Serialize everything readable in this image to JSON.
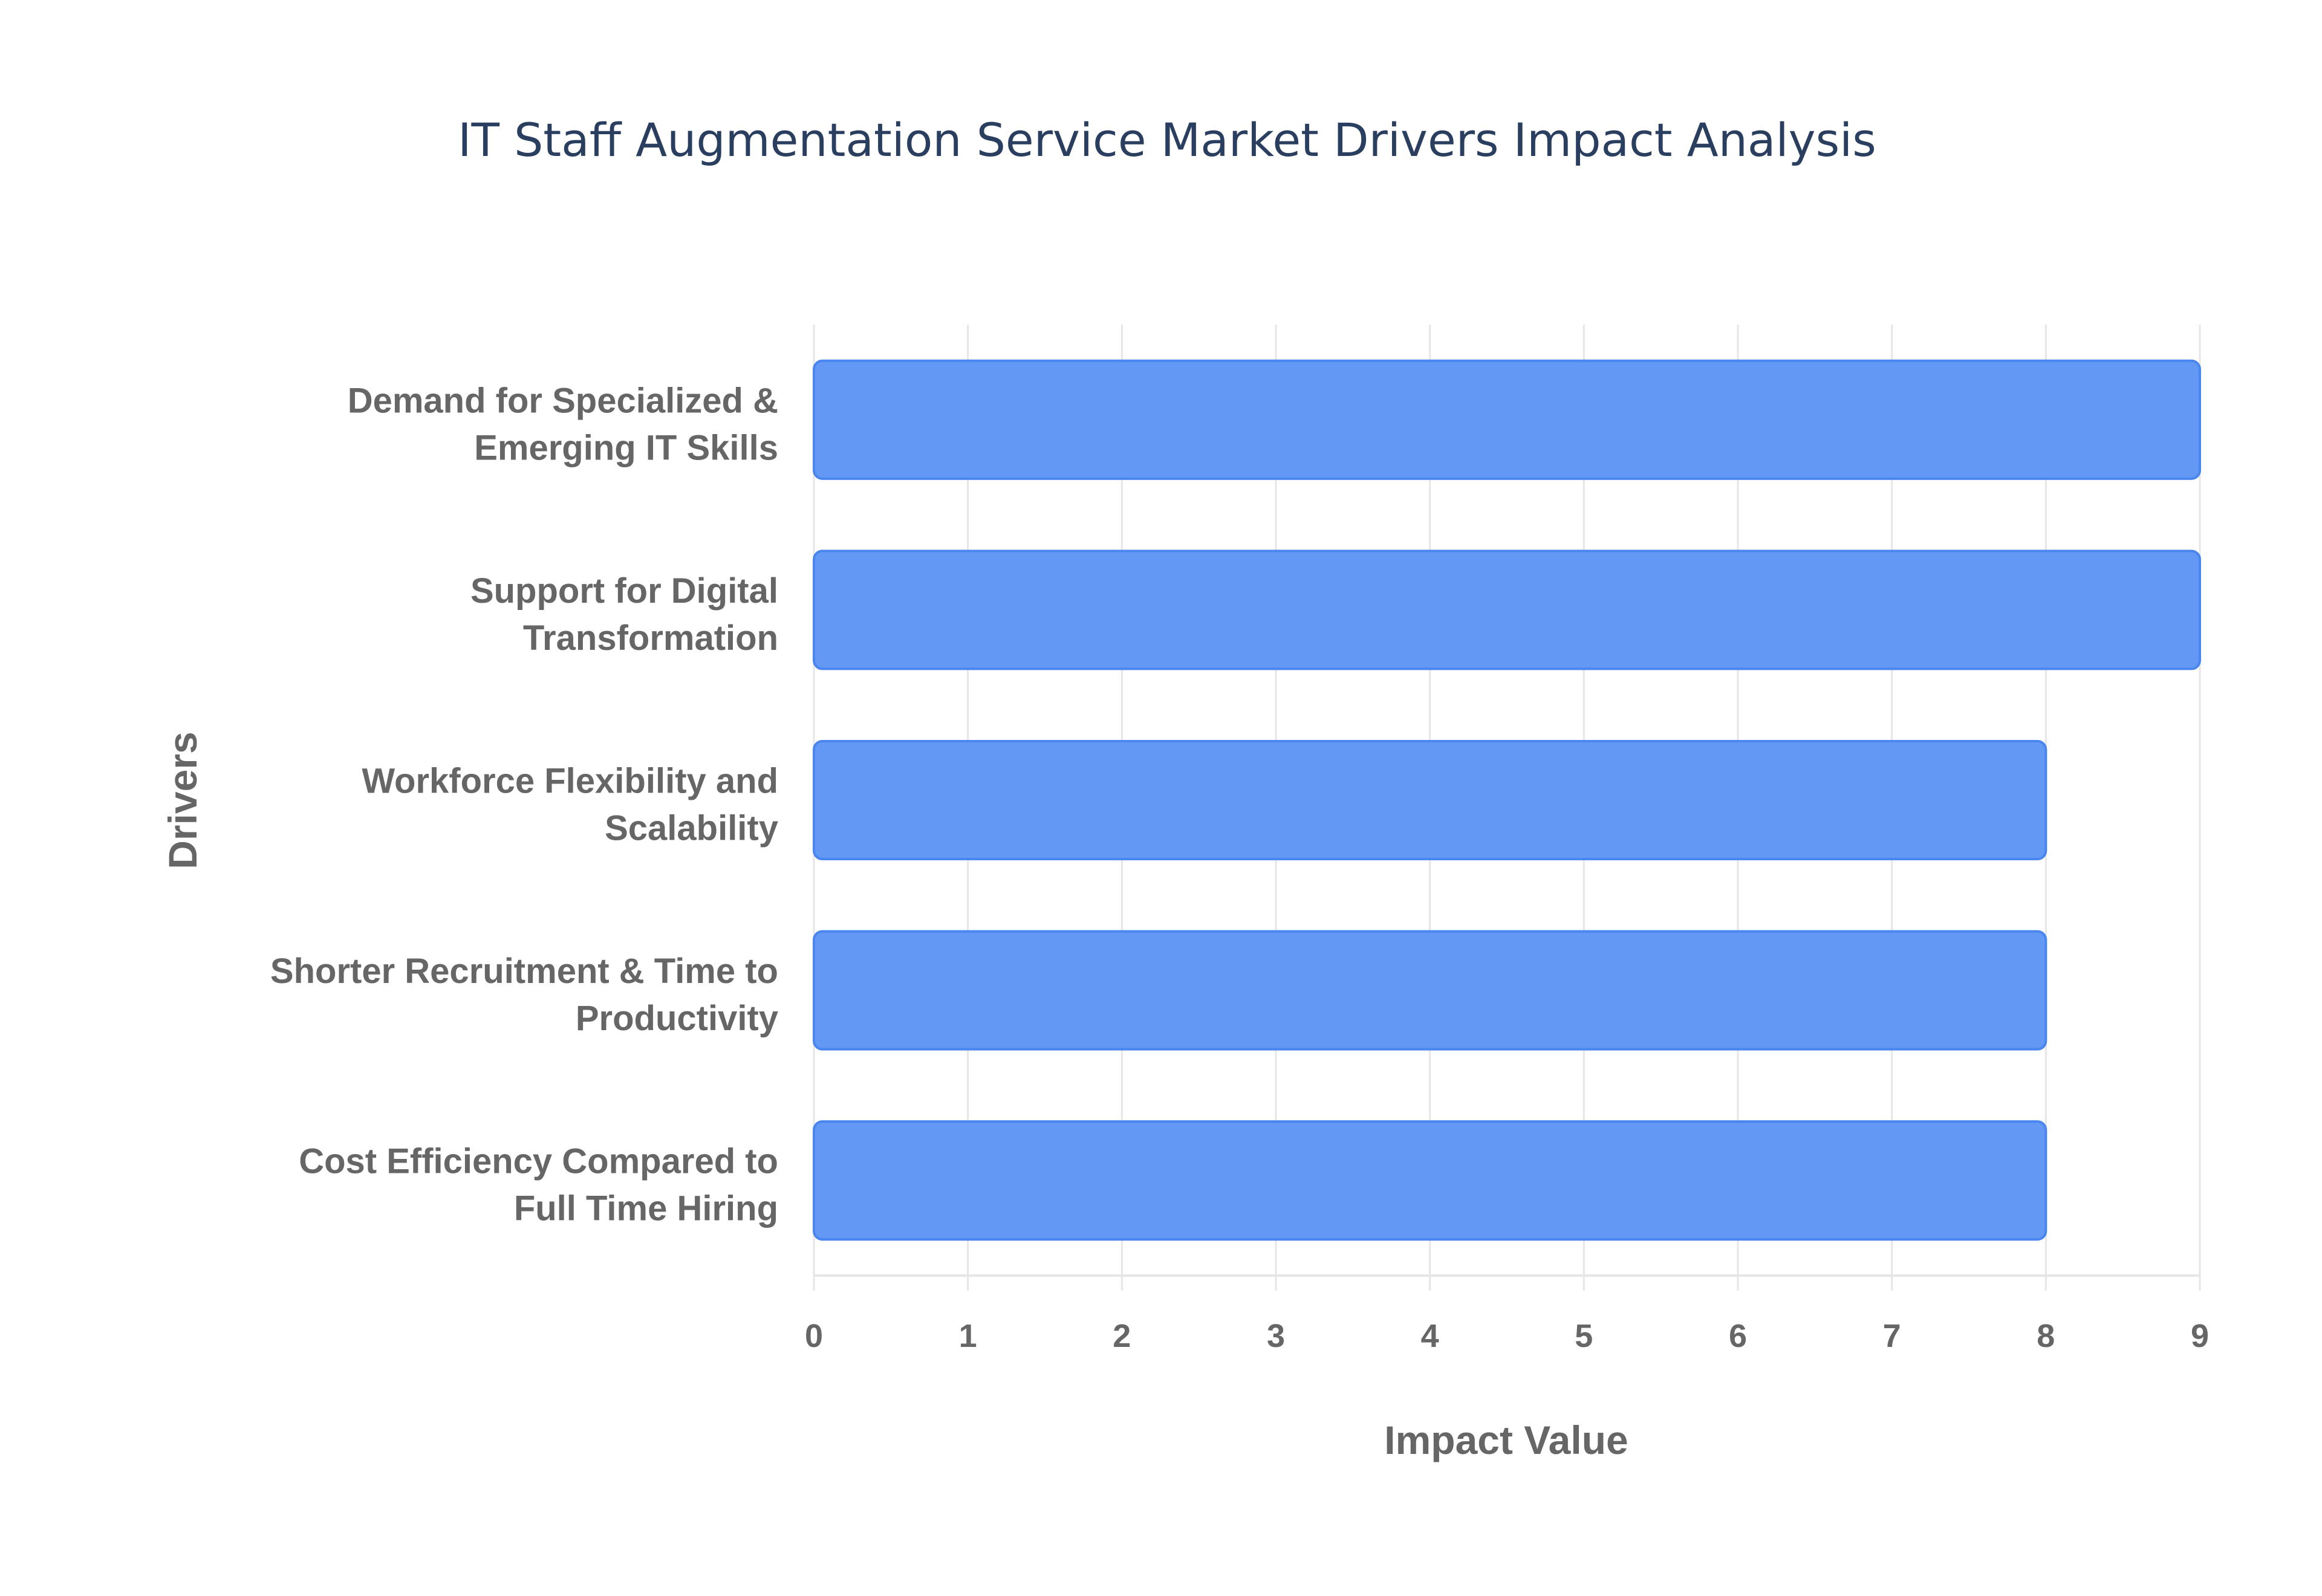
{
  "chart_data": {
    "type": "bar",
    "orientation": "horizontal",
    "title": "IT Staff Augmentation Service Market Drivers Impact Analysis",
    "xlabel": "Impact Value",
    "ylabel": "Drivers",
    "categories": [
      [
        "Demand for Specialized &",
        "Emerging IT Skills"
      ],
      [
        "Support for Digital",
        "Transformation"
      ],
      [
        "Workforce Flexibility and",
        "Scalability"
      ],
      [
        "Shorter Recruitment & Time to",
        "Productivity"
      ],
      [
        "Cost Efficiency Compared to",
        "Full Time Hiring"
      ]
    ],
    "values": [
      9,
      9,
      8,
      8,
      8
    ],
    "xlim": [
      0,
      9
    ],
    "xticks": [
      "0",
      "1",
      "2",
      "3",
      "4",
      "5",
      "6",
      "7",
      "8",
      "9"
    ],
    "grid": true,
    "colors": {
      "bar": "#6399f5",
      "bar_border": "#4a86f0",
      "grid": "#e6e6e6",
      "title": "#2a3f5f",
      "text": "#666666"
    }
  }
}
